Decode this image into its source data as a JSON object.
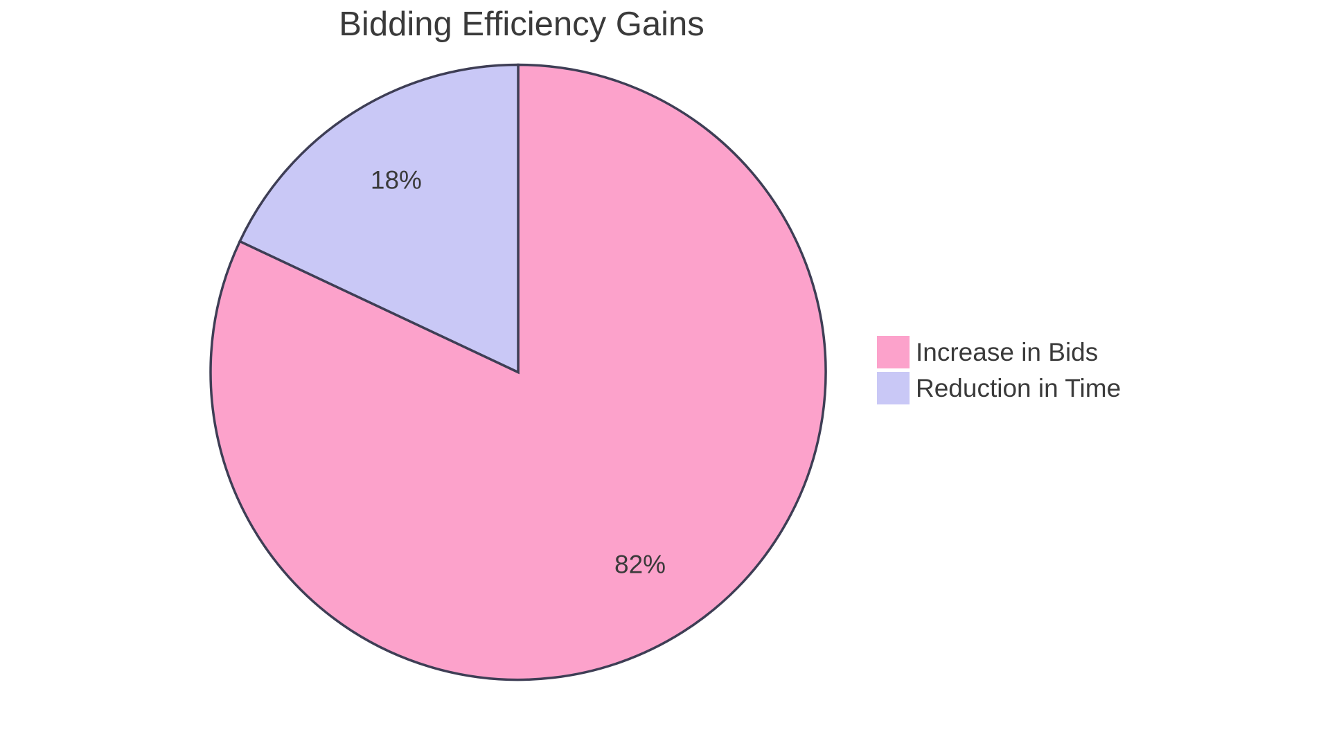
{
  "chart_data": {
    "type": "pie",
    "title": "Bidding Efficiency Gains",
    "direction": "clockwise",
    "start_angle": "12-oclock",
    "slices": [
      {
        "label": "Increase in Bids",
        "value": 82,
        "percent_label": "82%",
        "color": "#FCA2CB"
      },
      {
        "label": "Reduction in Time",
        "value": 18,
        "percent_label": "18%",
        "color": "#C9C8F6"
      }
    ],
    "slice_border_color": "#3E3E55",
    "slice_border_width": 3.5,
    "percent_label_color": "#3A3A3A",
    "title_color": "#3A3A3A",
    "background": "#FFFFFF",
    "legend_position": "right",
    "grid": false
  }
}
